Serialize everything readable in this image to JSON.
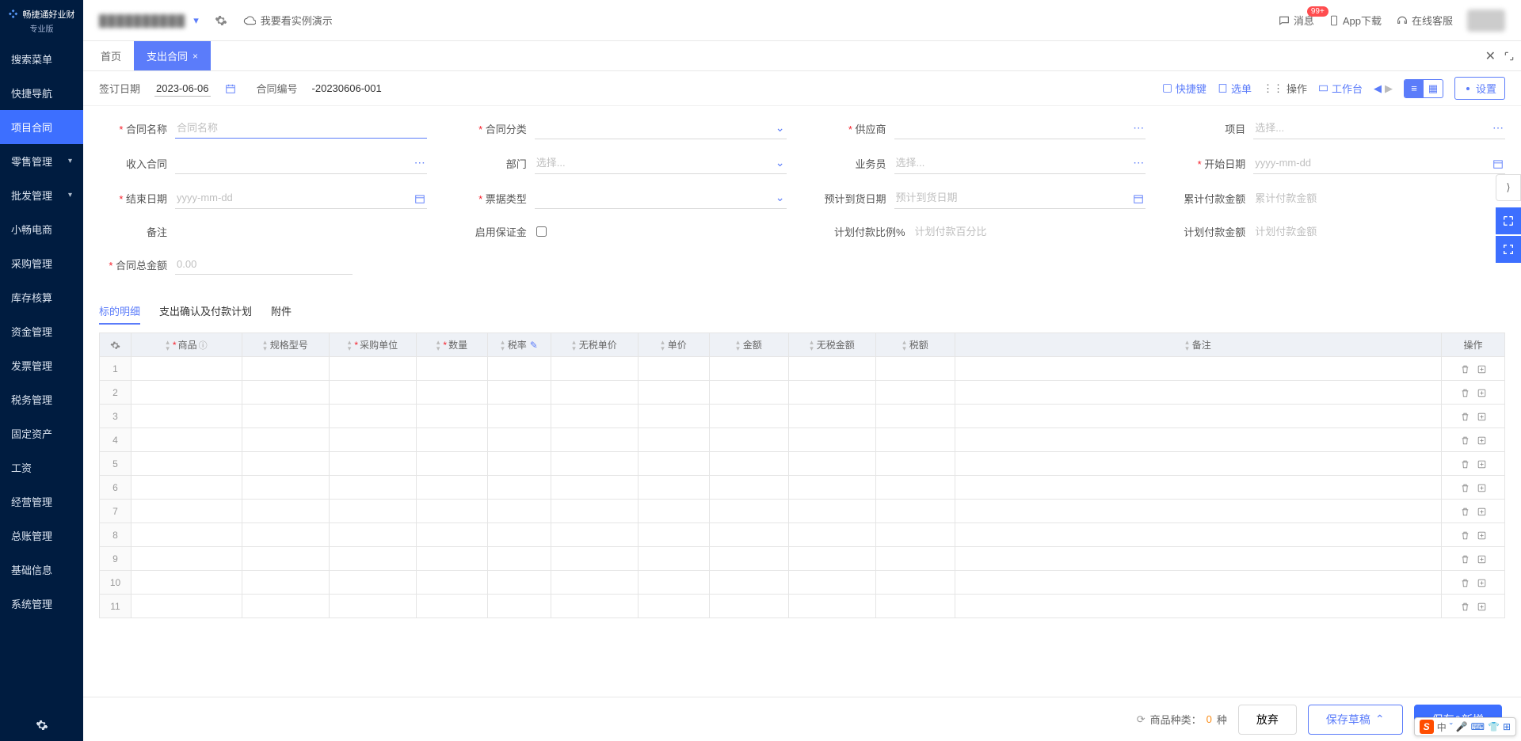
{
  "brand": {
    "line1": "畅捷通好业财",
    "line2": "专业版"
  },
  "sidebar": {
    "items": [
      {
        "label": "搜索菜单"
      },
      {
        "label": "快捷导航"
      },
      {
        "label": "项目合同",
        "active": true
      },
      {
        "label": "零售管理",
        "expand": true
      },
      {
        "label": "批发管理",
        "expand": true
      },
      {
        "label": "小畅电商"
      },
      {
        "label": "采购管理"
      },
      {
        "label": "库存核算"
      },
      {
        "label": "资金管理"
      },
      {
        "label": "发票管理"
      },
      {
        "label": "税务管理"
      },
      {
        "label": "固定资产"
      },
      {
        "label": "工资"
      },
      {
        "label": "经营管理"
      },
      {
        "label": "总账管理"
      },
      {
        "label": "基础信息"
      },
      {
        "label": "系统管理"
      }
    ]
  },
  "topbar": {
    "org_placeholder": "██████████",
    "demo_label": "我要看实例演示",
    "msg_label": "消息",
    "msg_badge": "99+",
    "app_label": "App下载",
    "cs_label": "在线客服"
  },
  "tabs": {
    "home": "首页",
    "active": "支出合同"
  },
  "subheader": {
    "sign_label": "签订日期",
    "sign_date": "2023-06-06",
    "no_label": "合同编号",
    "no_value": "-20230606-001",
    "shortcut": "快捷键",
    "choose": "选单",
    "operate": "操作",
    "workbench": "工作台",
    "settings": "设置"
  },
  "form": {
    "name": {
      "label": "合同名称",
      "placeholder": "合同名称"
    },
    "category": {
      "label": "合同分类"
    },
    "supplier": {
      "label": "供应商"
    },
    "project": {
      "label": "项目",
      "placeholder": "选择..."
    },
    "income_contract": {
      "label": "收入合同"
    },
    "dept": {
      "label": "部门",
      "placeholder": "选择..."
    },
    "salesman": {
      "label": "业务员",
      "placeholder": "选择..."
    },
    "start": {
      "label": "开始日期",
      "placeholder": "yyyy-mm-dd"
    },
    "end": {
      "label": "结束日期",
      "placeholder": "yyyy-mm-dd"
    },
    "invoice_type": {
      "label": "票据类型"
    },
    "eta": {
      "label": "预计到货日期",
      "placeholder": "预计到货日期"
    },
    "paid_total": {
      "label": "累计付款金额",
      "placeholder": "累计付款金额"
    },
    "remark": {
      "label": "备注"
    },
    "deposit": {
      "label": "启用保证金"
    },
    "plan_pct": {
      "label": "计划付款比例%",
      "placeholder": "计划付款百分比"
    },
    "plan_amt": {
      "label": "计划付款金额",
      "placeholder": "计划付款金额"
    },
    "total": {
      "label": "合同总金额",
      "placeholder": "0.00"
    }
  },
  "detail_tabs": {
    "items": "标的明细",
    "confirm": "支出确认及付款计划",
    "attach": "附件"
  },
  "grid": {
    "cols": {
      "product": "商品",
      "spec": "规格型号",
      "unit": "采购单位",
      "qty": "数量",
      "rate": "税率",
      "notax_price": "无税单价",
      "price": "单价",
      "amount": "金额",
      "notax_amount": "无税金额",
      "tax": "税额",
      "remark": "备注",
      "op": "操作"
    },
    "row_count": 11
  },
  "footer": {
    "kinds_label": "商品种类：",
    "kinds_n": "0",
    "kinds_unit": "种",
    "discard": "放弃",
    "draft": "保存草稿",
    "save_new": "保存&新增"
  }
}
